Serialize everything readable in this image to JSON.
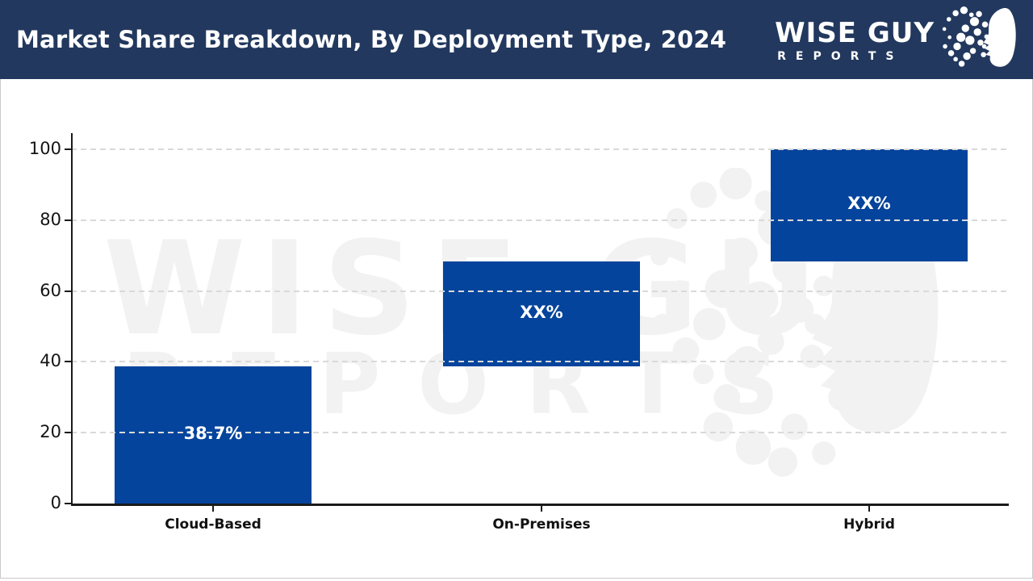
{
  "header": {
    "title": "Market Share Breakdown, By Deployment Type, 2024",
    "logo": {
      "name": "WISE GUY",
      "sub": "REPORTS"
    }
  },
  "watermark": {
    "line1": "WISE GUY",
    "line2": "REPORTS"
  },
  "chart_data": {
    "type": "bar",
    "variant": "floating-segment waterfall of market share",
    "title": "Market Share Breakdown, By Deployment Type, 2024",
    "categories": [
      "Cloud-Based",
      "On-Premises",
      "Hybrid"
    ],
    "segments": [
      {
        "category": "Cloud-Based",
        "start": 0,
        "end": 38.7,
        "label": "38.7%"
      },
      {
        "category": "On-Premises",
        "start": 38.7,
        "end": 68.4,
        "label": "XX%"
      },
      {
        "category": "Hybrid",
        "start": 68.4,
        "end": 100,
        "label": "XX%"
      }
    ],
    "xlabel": "",
    "ylabel": "",
    "ylim": [
      0,
      100
    ],
    "yticks": [
      0,
      20,
      40,
      60,
      80,
      100
    ],
    "grid": {
      "horizontal": true,
      "style": "dashed",
      "drawn_above_bars": true
    },
    "legend": null
  },
  "colors": {
    "header_bg": "#22385e",
    "title_text": "#ffffff",
    "bar": "#04449c",
    "value_label": "#ffffff",
    "grid": "#d9d9d9",
    "axis": "#1a1a1a",
    "watermark": "#f2f2f2",
    "frame_border": "#c9c9c9"
  }
}
